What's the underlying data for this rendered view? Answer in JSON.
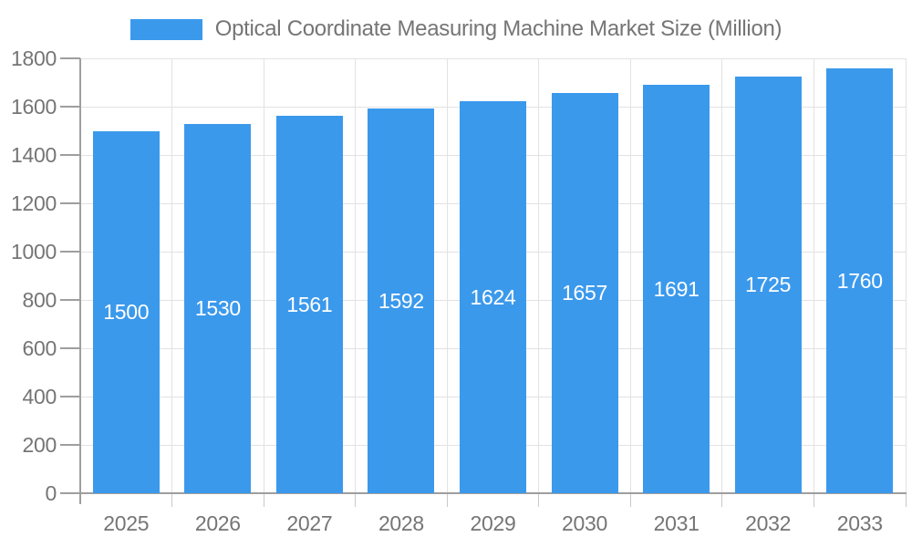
{
  "legend": {
    "label": "Optical Coordinate Measuring Machine Market Size (Million)"
  },
  "chart_data": {
    "type": "bar",
    "title": "Optical Coordinate Measuring Machine Market Size (Million)",
    "categories": [
      "2025",
      "2026",
      "2027",
      "2028",
      "2029",
      "2030",
      "2031",
      "2032",
      "2033"
    ],
    "values": [
      1500,
      1530,
      1561,
      1592,
      1624,
      1657,
      1691,
      1725,
      1760
    ],
    "xlabel": "",
    "ylabel": "",
    "ylim": [
      0,
      1800
    ],
    "ytick_step": 200,
    "yticks": [
      0,
      200,
      400,
      600,
      800,
      1000,
      1200,
      1400,
      1600,
      1800
    ],
    "grid": true,
    "legend_position": "top-center",
    "value_labels_shown": true
  },
  "colors": {
    "bar": "#3B99EC",
    "grid": "#E2E2E2",
    "x_tick": "#C9C9C9",
    "axis": "#9E9E9E",
    "text": "#757575",
    "value_label": "#FFFFFF",
    "background": "#FFFFFF"
  }
}
